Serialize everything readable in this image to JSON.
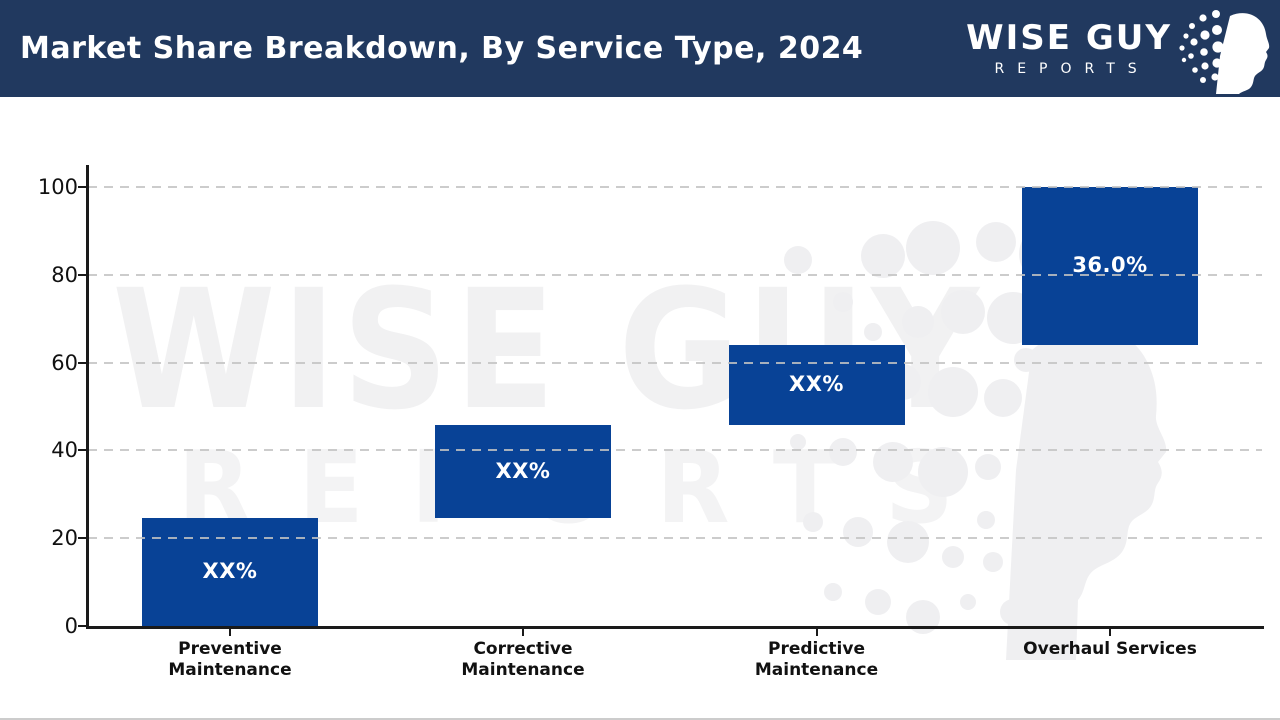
{
  "header": {
    "title": "Market Share Breakdown, By Service Type, 2024",
    "logo_line1": "WISE GUY",
    "logo_line2": "REPORTS"
  },
  "watermark": {
    "line1": "WISE GUY",
    "line2": "REPORTS"
  },
  "chart_data": {
    "type": "bar",
    "subtype": "waterfall",
    "title": "Market Share Breakdown, By Service Type, 2024",
    "categories": [
      "Preventive\nMaintenance",
      "Corrective\nMaintenance",
      "Predictive\nMaintenance",
      "Overhaul Services"
    ],
    "segments": [
      {
        "category": "Preventive Maintenance",
        "start": 0,
        "end": 24.5,
        "value": 24.5,
        "label": "XX%"
      },
      {
        "category": "Corrective Maintenance",
        "start": 24.5,
        "end": 45.7,
        "value": 21.2,
        "label": "XX%"
      },
      {
        "category": "Predictive Maintenance",
        "start": 45.7,
        "end": 64.0,
        "value": 18.3,
        "label": "XX%"
      },
      {
        "category": "Overhaul Services",
        "start": 64.0,
        "end": 100.0,
        "value": 36.0,
        "label": "36.0%"
      }
    ],
    "yticks": [
      0,
      20,
      40,
      60,
      80,
      100
    ],
    "ylim": [
      0,
      105
    ],
    "xlabel": "",
    "ylabel": "",
    "grid": "horizontal-dashed",
    "legend": "none"
  },
  "colors": {
    "header_bg": "#21395F",
    "bar": "#084296",
    "axis": "#1a1a1a",
    "grid": "#c9c9c9",
    "watermark": "#f1f1f2",
    "label_text": "#ffffff"
  }
}
